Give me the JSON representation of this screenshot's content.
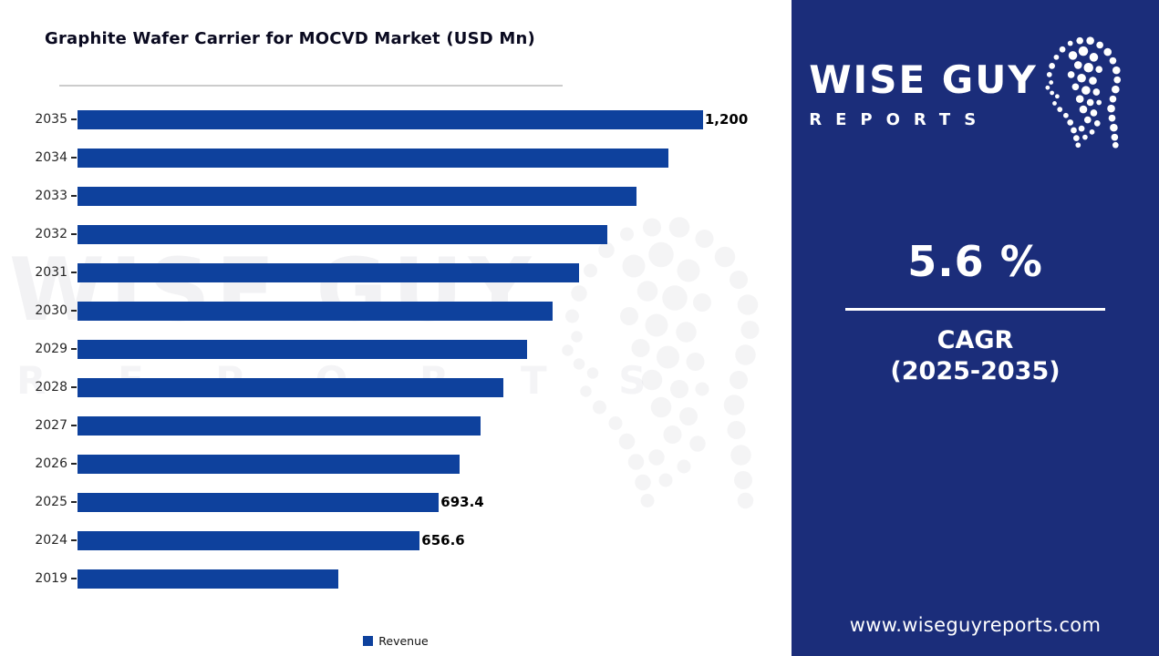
{
  "colors": {
    "bar": "#0e419d",
    "sidebar-bg": "#1b2d7a"
  },
  "chart_data": {
    "type": "bar",
    "orientation": "horizontal",
    "title": "Graphite Wafer Carrier for MOCVD Market (USD Mn)",
    "categories": [
      "2035",
      "2034",
      "2033",
      "2032",
      "2031",
      "2030",
      "2029",
      "2028",
      "2027",
      "2026",
      "2025",
      "2024",
      "2019"
    ],
    "values": [
      1200,
      1133,
      1072,
      1016,
      962,
      911,
      863,
      817,
      774,
      733,
      693.4,
      656.6,
      500
    ],
    "value_labels": [
      "1,200",
      "",
      "",
      "",
      "",
      "",
      "",
      "",
      "",
      "",
      "693.4",
      "656.6",
      ""
    ],
    "xlabel": "",
    "ylabel": "",
    "xlim": [
      0,
      1300
    ],
    "grid": false,
    "legend_position": "bottom",
    "legend": [
      {
        "label": "Revenue",
        "color": "#0e419d"
      }
    ],
    "bar_color": "#0e419d"
  },
  "watermark": {
    "line1": "WISE GUY",
    "line2": "R E P O R T S"
  },
  "sidebar": {
    "logo_line1": "WISE GUY",
    "logo_line2": "REPORTS",
    "cagr_value": "5.6 %",
    "cagr_label": "CAGR",
    "cagr_range": "(2025-2035)",
    "website": "www.wiseguyreports.com"
  }
}
